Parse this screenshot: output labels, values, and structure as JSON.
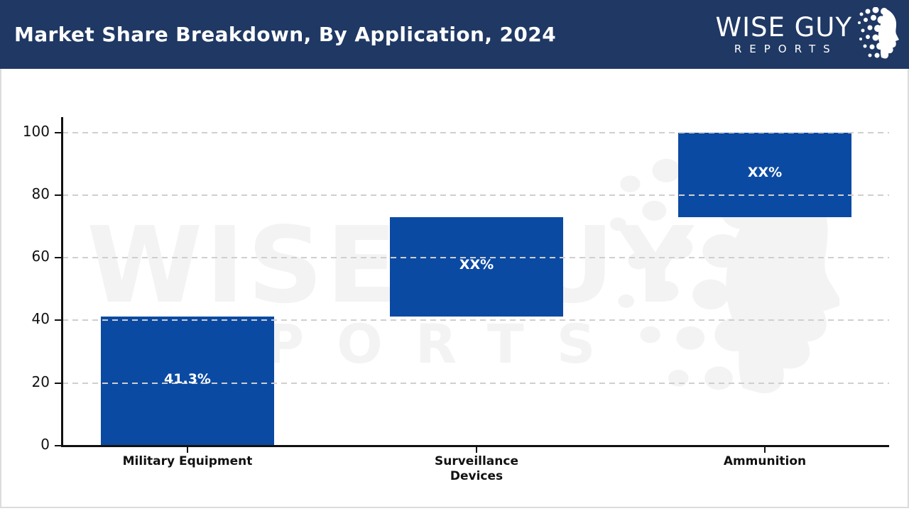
{
  "header": {
    "title": "Market Share Breakdown, By Application, 2024",
    "logo": {
      "wordmark": "WISE GUY",
      "subtext": "REPORTS"
    }
  },
  "watermark": {
    "line1": "WISE GUY",
    "line2": "REPORTS"
  },
  "colors": {
    "header_bg": "#1F3864",
    "bar": "#0B4AA2",
    "grid": "#CFCFCF",
    "axis": "#111111",
    "bar_label": "#FFFFFF",
    "category_label": "#111111",
    "tick_label": "#111111",
    "watermark": "#F3F3F3",
    "card_border": "#DCDCDC"
  },
  "chart_data": {
    "type": "bar",
    "variant": "waterfall",
    "title": "Market Share Breakdown, By Application, 2024",
    "categories": [
      "Military Equipment",
      "Surveillance\nDevices",
      "Ammunition"
    ],
    "series": [
      {
        "name": "Market share (%)",
        "segments": [
          {
            "category": "Military Equipment",
            "from": 0,
            "to": 41.3,
            "label": "41.3%"
          },
          {
            "category": "Surveillance Devices",
            "from": 41.3,
            "to": 72.9,
            "label": "XX%"
          },
          {
            "category": "Ammunition",
            "from": 72.9,
            "to": 100,
            "label": "XX%"
          }
        ]
      }
    ],
    "yticks": [
      0,
      20,
      40,
      60,
      80,
      100
    ],
    "ylim": [
      0,
      105
    ],
    "xlabel": "",
    "ylabel": "",
    "grid": "horizontal-dashed",
    "legend": "none"
  }
}
